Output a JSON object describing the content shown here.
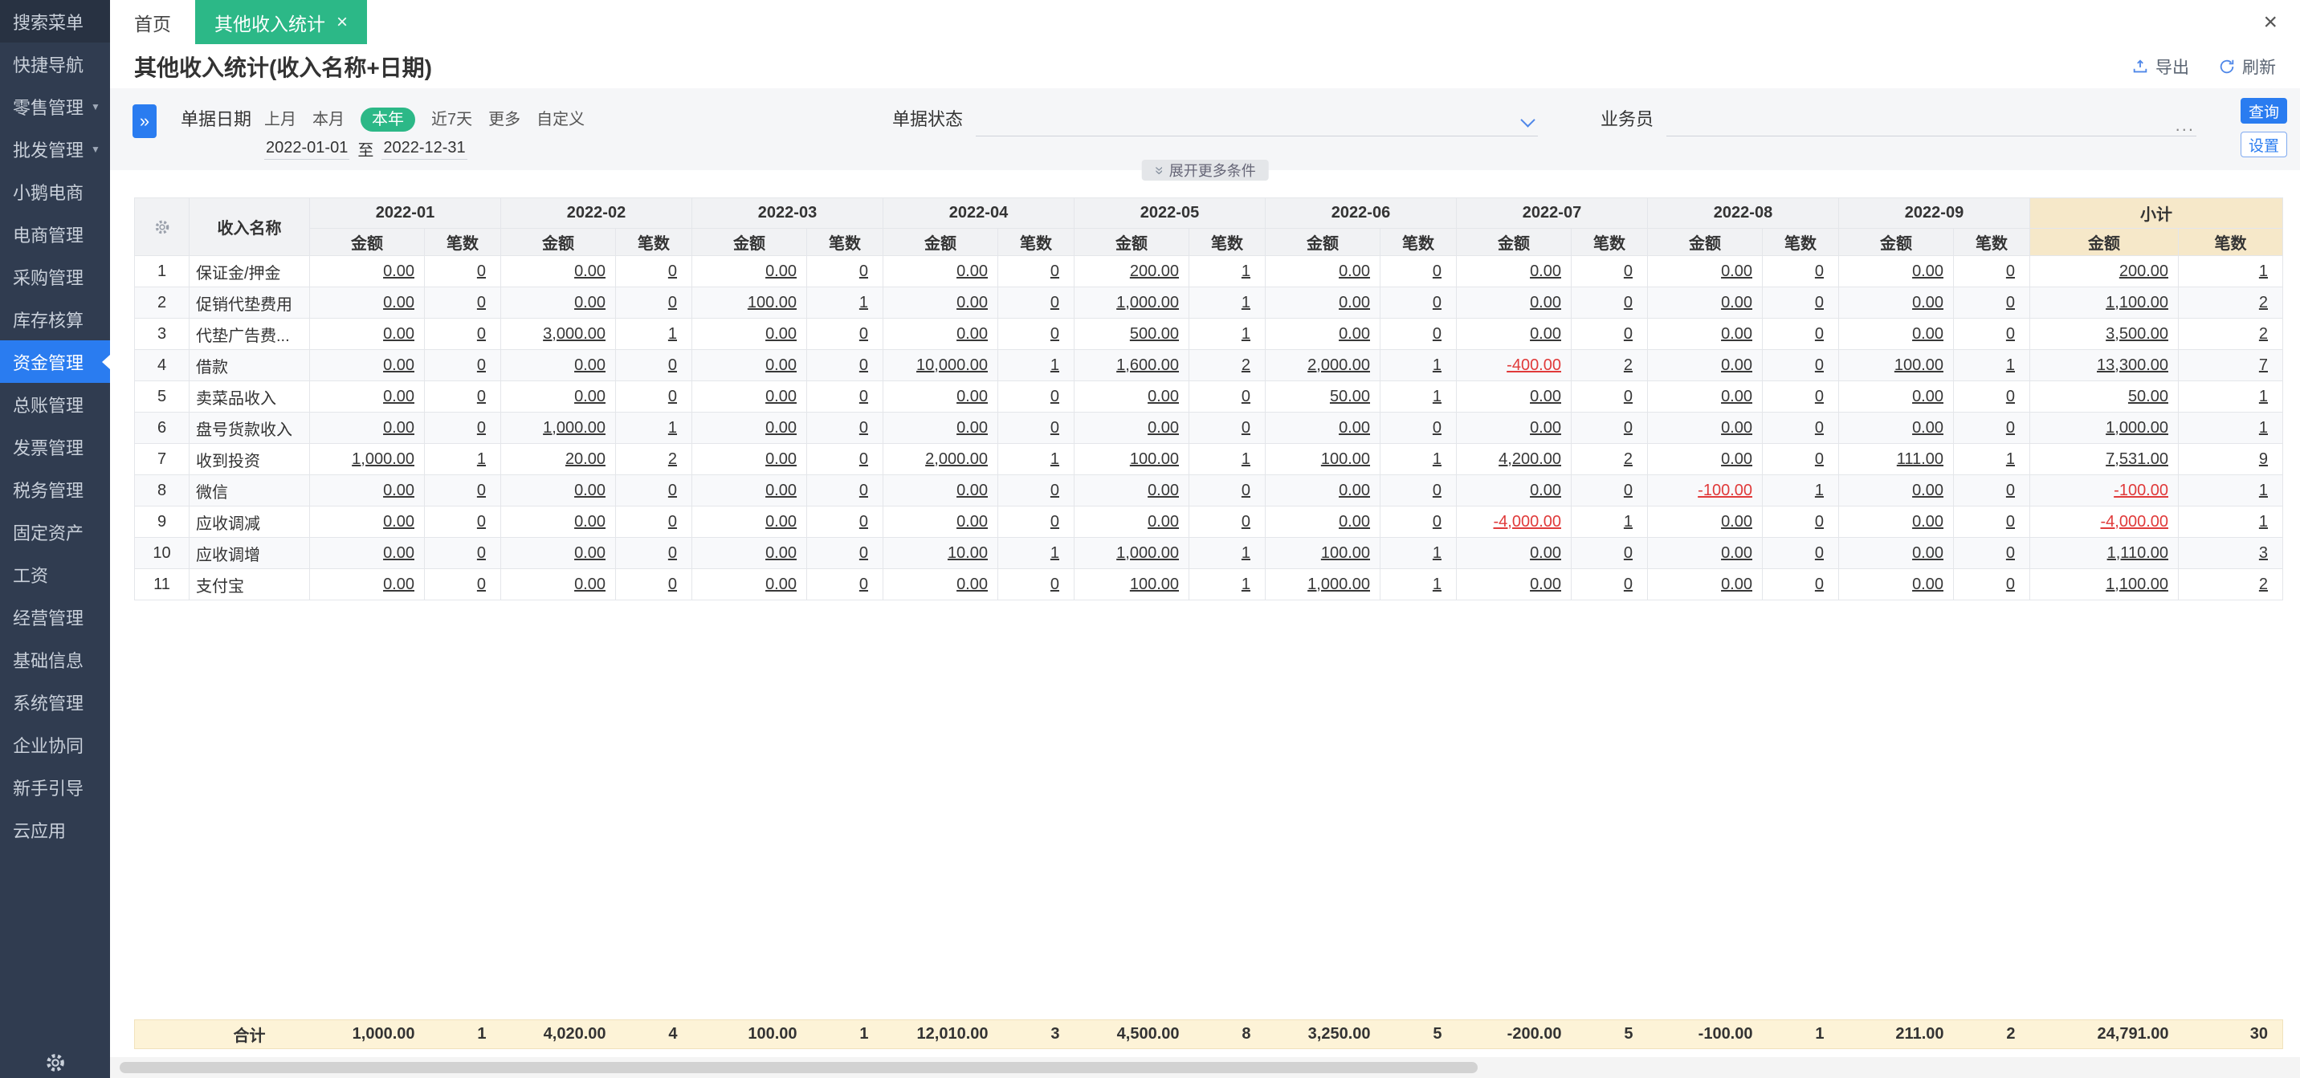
{
  "colors": {
    "accent_blue": "#2a7cf0",
    "tab_green": "#2cb887",
    "negative_red": "#e03a3a",
    "sidebar_bg": "#303c50",
    "footer_bg": "#fdf3d7",
    "subtotal_header_bg": "#f6e8c9"
  },
  "sidebar": {
    "caret_glyph": "▼",
    "items": [
      {
        "label": "搜索菜单"
      },
      {
        "label": "快捷导航"
      },
      {
        "label": "零售管理",
        "expandable": true
      },
      {
        "label": "批发管理",
        "expandable": true
      },
      {
        "label": "小鹅电商"
      },
      {
        "label": "电商管理"
      },
      {
        "label": "采购管理"
      },
      {
        "label": "库存核算"
      },
      {
        "label": "资金管理",
        "active": true
      },
      {
        "label": "总账管理"
      },
      {
        "label": "发票管理"
      },
      {
        "label": "税务管理"
      },
      {
        "label": "固定资产"
      },
      {
        "label": "工资"
      },
      {
        "label": "经营管理"
      },
      {
        "label": "基础信息"
      },
      {
        "label": "系统管理"
      },
      {
        "label": "企业协同"
      },
      {
        "label": "新手引导"
      },
      {
        "label": "云应用"
      }
    ]
  },
  "tabs": {
    "home_label": "首页",
    "active_label": "其他收入统计",
    "close_glyph": "×"
  },
  "page": {
    "title": "其他收入统计(收入名称+日期)",
    "export_label": "导出",
    "refresh_label": "刷新"
  },
  "filters": {
    "collapse_glyph": "»",
    "expand_chevron_glyph": "«",
    "date_label": "单据日期",
    "quick_options": [
      "上月",
      "本月",
      "本年",
      "近7天",
      "更多",
      "自定义"
    ],
    "selected_quick": "本年",
    "date_from": "2022-01-01",
    "date_separator": "至",
    "date_to": "2022-12-31",
    "status_label": "单据状态",
    "salesman_label": "业务员",
    "salesman_more_glyph": "...",
    "search_label": "查询",
    "settings_label": "设置",
    "expand_more_label": "展开更多条件"
  },
  "table": {
    "name_header": "收入名称",
    "amount_header": "金额",
    "count_header": "笔数",
    "subtotal_header": "小计",
    "months": [
      "2022-01",
      "2022-02",
      "2022-03",
      "2022-04",
      "2022-05",
      "2022-06",
      "2022-07",
      "2022-08",
      "2022-09"
    ],
    "rows": [
      {
        "no": "1",
        "name": "保证金/押金",
        "values": [
          [
            "0.00",
            "0"
          ],
          [
            "0.00",
            "0"
          ],
          [
            "0.00",
            "0"
          ],
          [
            "0.00",
            "0"
          ],
          [
            "200.00",
            "1"
          ],
          [
            "0.00",
            "0"
          ],
          [
            "0.00",
            "0"
          ],
          [
            "0.00",
            "0"
          ],
          [
            "0.00",
            "0"
          ],
          [
            "200.00",
            "1"
          ]
        ]
      },
      {
        "no": "2",
        "name": "促销代垫费用",
        "values": [
          [
            "0.00",
            "0"
          ],
          [
            "0.00",
            "0"
          ],
          [
            "100.00",
            "1"
          ],
          [
            "0.00",
            "0"
          ],
          [
            "1,000.00",
            "1"
          ],
          [
            "0.00",
            "0"
          ],
          [
            "0.00",
            "0"
          ],
          [
            "0.00",
            "0"
          ],
          [
            "0.00",
            "0"
          ],
          [
            "1,100.00",
            "2"
          ]
        ]
      },
      {
        "no": "3",
        "name": "代垫广告费...",
        "values": [
          [
            "0.00",
            "0"
          ],
          [
            "3,000.00",
            "1"
          ],
          [
            "0.00",
            "0"
          ],
          [
            "0.00",
            "0"
          ],
          [
            "500.00",
            "1"
          ],
          [
            "0.00",
            "0"
          ],
          [
            "0.00",
            "0"
          ],
          [
            "0.00",
            "0"
          ],
          [
            "0.00",
            "0"
          ],
          [
            "3,500.00",
            "2"
          ]
        ]
      },
      {
        "no": "4",
        "name": "借款",
        "values": [
          [
            "0.00",
            "0"
          ],
          [
            "0.00",
            "0"
          ],
          [
            "0.00",
            "0"
          ],
          [
            "10,000.00",
            "1"
          ],
          [
            "1,600.00",
            "2"
          ],
          [
            "2,000.00",
            "1"
          ],
          [
            "-400.00",
            "2"
          ],
          [
            "0.00",
            "0"
          ],
          [
            "100.00",
            "1"
          ],
          [
            "13,300.00",
            "7"
          ]
        ]
      },
      {
        "no": "5",
        "name": "卖菜品收入",
        "values": [
          [
            "0.00",
            "0"
          ],
          [
            "0.00",
            "0"
          ],
          [
            "0.00",
            "0"
          ],
          [
            "0.00",
            "0"
          ],
          [
            "0.00",
            "0"
          ],
          [
            "50.00",
            "1"
          ],
          [
            "0.00",
            "0"
          ],
          [
            "0.00",
            "0"
          ],
          [
            "0.00",
            "0"
          ],
          [
            "50.00",
            "1"
          ]
        ]
      },
      {
        "no": "6",
        "name": "盘号货款收入",
        "values": [
          [
            "0.00",
            "0"
          ],
          [
            "1,000.00",
            "1"
          ],
          [
            "0.00",
            "0"
          ],
          [
            "0.00",
            "0"
          ],
          [
            "0.00",
            "0"
          ],
          [
            "0.00",
            "0"
          ],
          [
            "0.00",
            "0"
          ],
          [
            "0.00",
            "0"
          ],
          [
            "0.00",
            "0"
          ],
          [
            "1,000.00",
            "1"
          ]
        ]
      },
      {
        "no": "7",
        "name": "收到投资",
        "values": [
          [
            "1,000.00",
            "1"
          ],
          [
            "20.00",
            "2"
          ],
          [
            "0.00",
            "0"
          ],
          [
            "2,000.00",
            "1"
          ],
          [
            "100.00",
            "1"
          ],
          [
            "100.00",
            "1"
          ],
          [
            "4,200.00",
            "2"
          ],
          [
            "0.00",
            "0"
          ],
          [
            "111.00",
            "1"
          ],
          [
            "7,531.00",
            "9"
          ]
        ]
      },
      {
        "no": "8",
        "name": "微信",
        "values": [
          [
            "0.00",
            "0"
          ],
          [
            "0.00",
            "0"
          ],
          [
            "0.00",
            "0"
          ],
          [
            "0.00",
            "0"
          ],
          [
            "0.00",
            "0"
          ],
          [
            "0.00",
            "0"
          ],
          [
            "0.00",
            "0"
          ],
          [
            "-100.00",
            "1"
          ],
          [
            "0.00",
            "0"
          ],
          [
            "-100.00",
            "1"
          ]
        ]
      },
      {
        "no": "9",
        "name": "应收调减",
        "values": [
          [
            "0.00",
            "0"
          ],
          [
            "0.00",
            "0"
          ],
          [
            "0.00",
            "0"
          ],
          [
            "0.00",
            "0"
          ],
          [
            "0.00",
            "0"
          ],
          [
            "0.00",
            "0"
          ],
          [
            "-4,000.00",
            "1"
          ],
          [
            "0.00",
            "0"
          ],
          [
            "0.00",
            "0"
          ],
          [
            "-4,000.00",
            "1"
          ]
        ]
      },
      {
        "no": "10",
        "name": "应收调增",
        "values": [
          [
            "0.00",
            "0"
          ],
          [
            "0.00",
            "0"
          ],
          [
            "0.00",
            "0"
          ],
          [
            "10.00",
            "1"
          ],
          [
            "1,000.00",
            "1"
          ],
          [
            "100.00",
            "1"
          ],
          [
            "0.00",
            "0"
          ],
          [
            "0.00",
            "0"
          ],
          [
            "0.00",
            "0"
          ],
          [
            "1,110.00",
            "3"
          ]
        ]
      },
      {
        "no": "11",
        "name": "支付宝",
        "values": [
          [
            "0.00",
            "0"
          ],
          [
            "0.00",
            "0"
          ],
          [
            "0.00",
            "0"
          ],
          [
            "0.00",
            "0"
          ],
          [
            "100.00",
            "1"
          ],
          [
            "1,000.00",
            "1"
          ],
          [
            "0.00",
            "0"
          ],
          [
            "0.00",
            "0"
          ],
          [
            "0.00",
            "0"
          ],
          [
            "1,100.00",
            "2"
          ]
        ]
      }
    ],
    "footer": {
      "label": "合计",
      "values": [
        [
          "1,000.00",
          "1"
        ],
        [
          "4,020.00",
          "4"
        ],
        [
          "100.00",
          "1"
        ],
        [
          "12,010.00",
          "3"
        ],
        [
          "4,500.00",
          "8"
        ],
        [
          "3,250.00",
          "5"
        ],
        [
          "-200.00",
          "5"
        ],
        [
          "-100.00",
          "1"
        ],
        [
          "211.00",
          "2"
        ],
        [
          "24,791.00",
          "30"
        ]
      ]
    }
  }
}
